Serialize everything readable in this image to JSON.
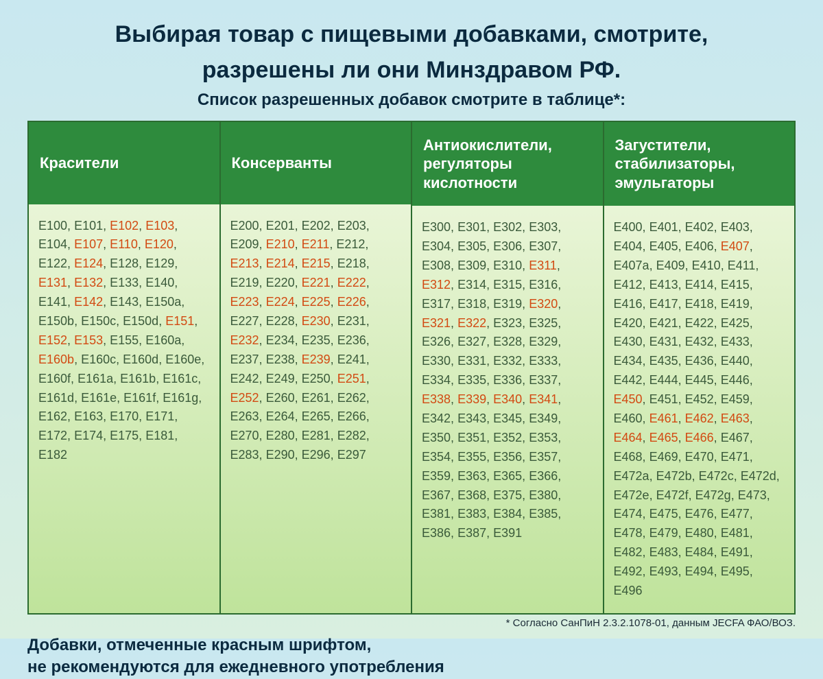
{
  "colors": {
    "bg_top": "#c9e8f0",
    "bg_bottom": "#d9efe0",
    "heading_text": "#0b2a3f",
    "header_bg": "#2e8b3d",
    "header_text": "#ffffff",
    "body_bg_top": "#e9f5d7",
    "body_bg_bottom": "#bfe39b",
    "body_text": "#3a5a3a",
    "highlight_text": "#d24a12",
    "border": "#2b6b2f"
  },
  "typography": {
    "title_main_size": 34,
    "title_sub_size": 24,
    "header_size": 22,
    "body_size": 18,
    "footnote_size": 15,
    "bottom_note_size": 24,
    "font_family": "Arial"
  },
  "title_line1": "Выбирая товар с пищевыми добавками, смотрите,",
  "title_line2": "разрешены ли они Минздравом РФ.",
  "subtitle": "Список разрешенных добавок смотрите в таблице*:",
  "footnote": "* Согласно СанПиН 2.3.2.1078-01, данным JECFA ФАО/ВОЗ.",
  "bottom_l1": "Добавки, отмеченные красным шрифтом,",
  "bottom_l2": "не рекомендуются для ежедневного употребления",
  "columns": [
    {
      "header": "Красители",
      "codes": [
        {
          "t": "E100"
        },
        {
          "t": "E101"
        },
        {
          "t": "E102",
          "hl": true
        },
        {
          "t": "E103",
          "hl": true
        },
        {
          "t": "E104"
        },
        {
          "t": "E107",
          "hl": true
        },
        {
          "t": "E110",
          "hl": true
        },
        {
          "t": "E120",
          "hl": true
        },
        {
          "t": "E122"
        },
        {
          "t": "E124",
          "hl": true
        },
        {
          "t": "E128"
        },
        {
          "t": "E129"
        },
        {
          "t": "E131",
          "hl": true
        },
        {
          "t": "E132",
          "hl": true
        },
        {
          "t": "E133"
        },
        {
          "t": "E140"
        },
        {
          "t": "E141"
        },
        {
          "t": "E142",
          "hl": true
        },
        {
          "t": "E143"
        },
        {
          "t": "E150a"
        },
        {
          "t": "E150b"
        },
        {
          "t": "E150c"
        },
        {
          "t": "E150d"
        },
        {
          "t": "E151",
          "hl": true
        },
        {
          "t": "E152",
          "hl": true
        },
        {
          "t": "E153",
          "hl": true
        },
        {
          "t": "E155"
        },
        {
          "t": "E160a"
        },
        {
          "t": "E160b",
          "hl": true
        },
        {
          "t": "E160c"
        },
        {
          "t": "E160d"
        },
        {
          "t": "E160e"
        },
        {
          "t": "E160f"
        },
        {
          "t": "E161a"
        },
        {
          "t": "E161b"
        },
        {
          "t": "E161c"
        },
        {
          "t": "E161d"
        },
        {
          "t": "E161e"
        },
        {
          "t": "E161f"
        },
        {
          "t": "E161g"
        },
        {
          "t": "E162"
        },
        {
          "t": "E163"
        },
        {
          "t": "E170"
        },
        {
          "t": "E171"
        },
        {
          "t": "E172"
        },
        {
          "t": "E174"
        },
        {
          "t": "E175"
        },
        {
          "t": "E181"
        },
        {
          "t": "E182"
        }
      ]
    },
    {
      "header": "Консерванты",
      "codes": [
        {
          "t": "E200"
        },
        {
          "t": "E201"
        },
        {
          "t": "E202"
        },
        {
          "t": "E203"
        },
        {
          "t": "E209"
        },
        {
          "t": "E210",
          "hl": true
        },
        {
          "t": "E211",
          "hl": true
        },
        {
          "t": "E212"
        },
        {
          "t": "E213",
          "hl": true
        },
        {
          "t": "E214",
          "hl": true
        },
        {
          "t": "E215",
          "hl": true
        },
        {
          "t": "E218"
        },
        {
          "t": "E219"
        },
        {
          "t": "E220"
        },
        {
          "t": "E221",
          "hl": true
        },
        {
          "t": "E222",
          "hl": true
        },
        {
          "t": "E223",
          "hl": true
        },
        {
          "t": "E224",
          "hl": true
        },
        {
          "t": "E225",
          "hl": true
        },
        {
          "t": "E226",
          "hl": true
        },
        {
          "t": "E227"
        },
        {
          "t": "E228"
        },
        {
          "t": "E230",
          "hl": true
        },
        {
          "t": "E231"
        },
        {
          "t": "E232",
          "hl": true
        },
        {
          "t": "E234"
        },
        {
          "t": "E235"
        },
        {
          "t": "E236"
        },
        {
          "t": "E237"
        },
        {
          "t": "E238"
        },
        {
          "t": "E239",
          "hl": true
        },
        {
          "t": "E241"
        },
        {
          "t": "E242"
        },
        {
          "t": "E249"
        },
        {
          "t": "E250"
        },
        {
          "t": "E251",
          "hl": true
        },
        {
          "t": "E252",
          "hl": true
        },
        {
          "t": "E260"
        },
        {
          "t": "E261"
        },
        {
          "t": "E262"
        },
        {
          "t": "E263"
        },
        {
          "t": "E264"
        },
        {
          "t": "E265"
        },
        {
          "t": "E266"
        },
        {
          "t": "E270"
        },
        {
          "t": "E280"
        },
        {
          "t": "E281"
        },
        {
          "t": "E282"
        },
        {
          "t": "E283"
        },
        {
          "t": "E290"
        },
        {
          "t": "E296"
        },
        {
          "t": "E297"
        }
      ]
    },
    {
      "header": "Антиокислители, регуляторы кислотности",
      "codes": [
        {
          "t": "E300"
        },
        {
          "t": "E301"
        },
        {
          "t": "E302"
        },
        {
          "t": "E303"
        },
        {
          "t": "E304"
        },
        {
          "t": "E305"
        },
        {
          "t": "E306"
        },
        {
          "t": "E307"
        },
        {
          "t": "E308"
        },
        {
          "t": "E309"
        },
        {
          "t": "E310"
        },
        {
          "t": "E311",
          "hl": true
        },
        {
          "t": "E312",
          "hl": true
        },
        {
          "t": "E314"
        },
        {
          "t": "E315"
        },
        {
          "t": "E316"
        },
        {
          "t": "E317"
        },
        {
          "t": "E318"
        },
        {
          "t": "E319"
        },
        {
          "t": "E320",
          "hl": true
        },
        {
          "t": "E321",
          "hl": true
        },
        {
          "t": "E322",
          "hl": true
        },
        {
          "t": "E323"
        },
        {
          "t": "E325"
        },
        {
          "t": "E326"
        },
        {
          "t": "E327"
        },
        {
          "t": "E328"
        },
        {
          "t": "E329"
        },
        {
          "t": "E330"
        },
        {
          "t": "E331"
        },
        {
          "t": "E332"
        },
        {
          "t": "E333"
        },
        {
          "t": "E334"
        },
        {
          "t": "E335"
        },
        {
          "t": "E336"
        },
        {
          "t": "E337"
        },
        {
          "t": "E338",
          "hl": true
        },
        {
          "t": "E339",
          "hl": true
        },
        {
          "t": "E340",
          "hl": true
        },
        {
          "t": "E341",
          "hl": true
        },
        {
          "t": "E342"
        },
        {
          "t": "E343"
        },
        {
          "t": "E345"
        },
        {
          "t": "E349"
        },
        {
          "t": "E350"
        },
        {
          "t": "E351"
        },
        {
          "t": "E352"
        },
        {
          "t": "E353"
        },
        {
          "t": "E354"
        },
        {
          "t": "E355"
        },
        {
          "t": "E356"
        },
        {
          "t": "E357"
        },
        {
          "t": "E359"
        },
        {
          "t": "E363"
        },
        {
          "t": "E365"
        },
        {
          "t": "E366"
        },
        {
          "t": "E367"
        },
        {
          "t": "E368"
        },
        {
          "t": "E375"
        },
        {
          "t": "E380"
        },
        {
          "t": "E381"
        },
        {
          "t": "E383"
        },
        {
          "t": "E384"
        },
        {
          "t": "E385"
        },
        {
          "t": "E386"
        },
        {
          "t": "E387"
        },
        {
          "t": "E391"
        }
      ]
    },
    {
      "header": "Загустители, стабилизаторы, эмульгаторы",
      "codes": [
        {
          "t": "E400"
        },
        {
          "t": "E401"
        },
        {
          "t": "E402"
        },
        {
          "t": "E403"
        },
        {
          "t": "E404"
        },
        {
          "t": "E405"
        },
        {
          "t": "E406"
        },
        {
          "t": "E407",
          "hl": true
        },
        {
          "t": "E407a"
        },
        {
          "t": "E409"
        },
        {
          "t": "E410"
        },
        {
          "t": "E411"
        },
        {
          "t": "E412"
        },
        {
          "t": "E413"
        },
        {
          "t": "E414"
        },
        {
          "t": "E415"
        },
        {
          "t": "E416"
        },
        {
          "t": "E417"
        },
        {
          "t": "E418"
        },
        {
          "t": "E419"
        },
        {
          "t": "E420"
        },
        {
          "t": "E421"
        },
        {
          "t": "E422"
        },
        {
          "t": "E425"
        },
        {
          "t": "E430"
        },
        {
          "t": "E431"
        },
        {
          "t": "E432"
        },
        {
          "t": "E433"
        },
        {
          "t": "E434"
        },
        {
          "t": "E435"
        },
        {
          "t": "E436"
        },
        {
          "t": "E440"
        },
        {
          "t": "E442"
        },
        {
          "t": "E444"
        },
        {
          "t": "E445"
        },
        {
          "t": "E446"
        },
        {
          "t": "E450",
          "hl": true
        },
        {
          "t": "E451"
        },
        {
          "t": "E452"
        },
        {
          "t": "E459"
        },
        {
          "t": "E460"
        },
        {
          "t": "E461",
          "hl": true
        },
        {
          "t": "E462",
          "hl": true
        },
        {
          "t": "E463",
          "hl": true
        },
        {
          "t": "E464",
          "hl": true
        },
        {
          "t": "E465",
          "hl": true
        },
        {
          "t": "E466",
          "hl": true
        },
        {
          "t": "E467"
        },
        {
          "t": "E468"
        },
        {
          "t": "E469"
        },
        {
          "t": "E470"
        },
        {
          "t": "E471"
        },
        {
          "t": "E472a"
        },
        {
          "t": "E472b"
        },
        {
          "t": "E472c"
        },
        {
          "t": "E472d"
        },
        {
          "t": "E472e"
        },
        {
          "t": "E472f"
        },
        {
          "t": "E472g"
        },
        {
          "t": "E473"
        },
        {
          "t": "E474"
        },
        {
          "t": "E475"
        },
        {
          "t": "E476"
        },
        {
          "t": "E477"
        },
        {
          "t": "E478"
        },
        {
          "t": "E479"
        },
        {
          "t": "E480"
        },
        {
          "t": "E481"
        },
        {
          "t": "E482"
        },
        {
          "t": "E483"
        },
        {
          "t": "E484"
        },
        {
          "t": "E491"
        },
        {
          "t": "E492"
        },
        {
          "t": "E493"
        },
        {
          "t": "E494"
        },
        {
          "t": "E495"
        },
        {
          "t": "E496"
        }
      ]
    }
  ]
}
